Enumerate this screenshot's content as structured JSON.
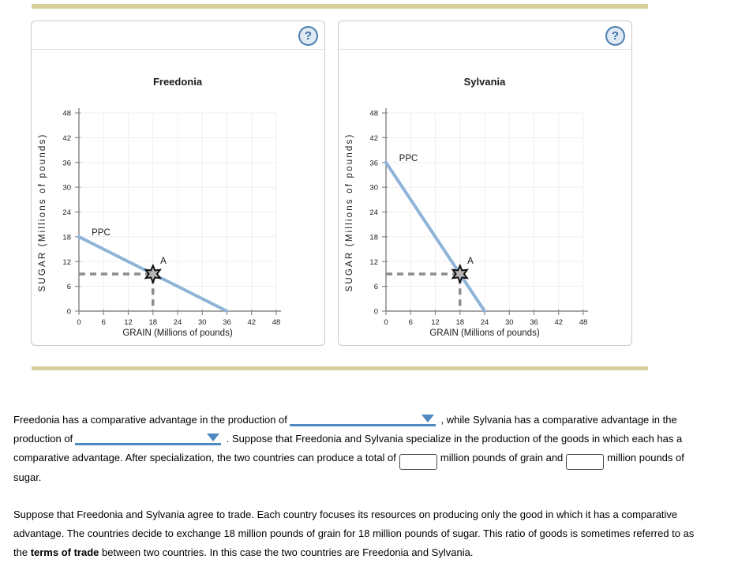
{
  "colors": {
    "rule_tan": "#d9cf9e",
    "ppc_blue": "#8fb3d9",
    "guide_gray": "#8c8c8c",
    "dropdown_blue": "#4e89c2",
    "help_blue_border": "#4e7fb1",
    "help_blue_bg": "#dfe9f3"
  },
  "panels": [
    {
      "help_label": "?"
    },
    {
      "help_label": "?"
    }
  ],
  "chart_data": [
    {
      "type": "line",
      "title": "Freedonia",
      "xlabel": "GRAIN (Millions of pounds)",
      "ylabel": "SUGAR (Millions of pounds)",
      "xlim": [
        0,
        48
      ],
      "ylim": [
        0,
        48
      ],
      "xticks": [
        0,
        6,
        12,
        18,
        24,
        30,
        36,
        42,
        48
      ],
      "yticks": [
        0,
        6,
        12,
        18,
        24,
        30,
        36,
        42,
        48
      ],
      "grid": true,
      "series": [
        {
          "name": "PPC",
          "points": [
            [
              0,
              18
            ],
            [
              36,
              0
            ]
          ],
          "color": "#8fb3d9",
          "label_pos": [
            3.1,
            18.4
          ]
        }
      ],
      "marker": {
        "label": "A",
        "x": 18,
        "y": 9,
        "shape": "star6",
        "label_pos": [
          19.8,
          11.5
        ]
      },
      "dashed_guides": {
        "to": [
          18,
          9
        ],
        "color": "#8c8c8c"
      }
    },
    {
      "type": "line",
      "title": "Sylvania",
      "xlabel": "GRAIN (Millions of pounds)",
      "ylabel": "SUGAR (Millions of pounds)",
      "xlim": [
        0,
        48
      ],
      "ylim": [
        0,
        48
      ],
      "xticks": [
        0,
        6,
        12,
        18,
        24,
        30,
        36,
        42,
        48
      ],
      "yticks": [
        0,
        6,
        12,
        18,
        24,
        30,
        36,
        42,
        48
      ],
      "grid": true,
      "series": [
        {
          "name": "PPC",
          "points": [
            [
              0,
              36
            ],
            [
              24,
              0
            ]
          ],
          "color": "#8fb3d9",
          "label_pos": [
            3.2,
            36.3
          ]
        }
      ],
      "marker": {
        "label": "A",
        "x": 18,
        "y": 9,
        "shape": "star6",
        "label_pos": [
          19.8,
          11.5
        ]
      },
      "dashed_guides": {
        "to": [
          18,
          9
        ],
        "color": "#8c8c8c"
      }
    }
  ],
  "question": {
    "line1_pre": "Freedonia has a comparative advantage in the production of",
    "line1_post": " , while Sylvania has a comparative advantage in the",
    "line2_pre": "production of",
    "line2_post": " . Suppose that Freedonia and Sylvania specialize in the production of the goods in which each has a",
    "line3_pre": "comparative advantage. After specialization, the two countries can produce a total of",
    "line3_mid": "million pounds of grain and",
    "line3_post": "million pounds of",
    "line4": "sugar.",
    "dropdown1_value": "",
    "dropdown2_value": "",
    "input1_value": "",
    "input2_value": ""
  },
  "paragraph2": {
    "line1": "Suppose that Freedonia and Sylvania agree to trade. Each country focuses its resources on producing only the good in which it has a comparative",
    "line2": "advantage. The countries decide to exchange 18 million pounds of grain for 18 million pounds of sugar. This ratio of goods is sometimes referred to as",
    "line3_pre": "the ",
    "line3_bold": "terms of trade",
    "line3_post": " between two countries. In this case the two countries are Freedonia and Sylvania."
  }
}
